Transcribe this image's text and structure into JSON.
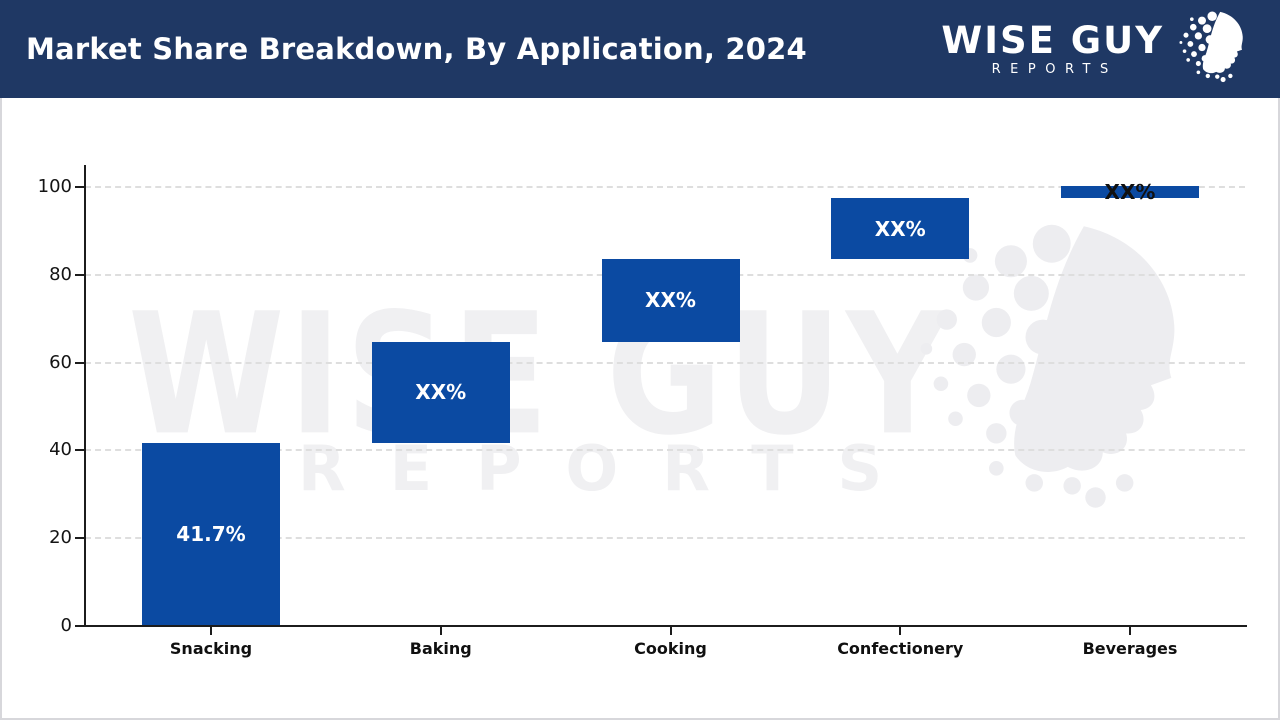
{
  "header": {
    "title": "Market Share Breakdown, By Application, 2024",
    "logo": {
      "line1": "WISE GUY",
      "line2": "REPORTS"
    }
  },
  "watermark": {
    "line1": "WISE GUY",
    "line2": "REPORTS"
  },
  "colors": {
    "header_bg": "#1f3864",
    "bar": "#0b4aa2",
    "grid": "#dedede",
    "axis": "#1c1c1c",
    "page_border": "#d7d7db",
    "bar_label_light": "#ffffff",
    "bar_label_dark": "#111111"
  },
  "chart_data": {
    "type": "bar",
    "subtype": "floating-waterfall",
    "title": "Market Share Breakdown, By Application, 2024",
    "categories": [
      "Snacking",
      "Baking",
      "Cooking",
      "Confectionery",
      "Beverages"
    ],
    "segments": [
      {
        "category": "Snacking",
        "start": 0,
        "end": 41.7,
        "label": "41.7%",
        "label_color": "#ffffff"
      },
      {
        "category": "Baking",
        "start": 41.7,
        "end": 64.8,
        "label": "XX%",
        "label_color": "#ffffff"
      },
      {
        "category": "Cooking",
        "start": 64.8,
        "end": 83.5,
        "label": "XX%",
        "label_color": "#ffffff"
      },
      {
        "category": "Confectionery",
        "start": 83.5,
        "end": 97.5,
        "label": "XX%",
        "label_color": "#ffffff"
      },
      {
        "category": "Beverages",
        "start": 97.5,
        "end": 100.2,
        "label": "XX%",
        "label_color": "#111111"
      }
    ],
    "yticks": [
      0,
      20,
      40,
      60,
      80,
      100
    ],
    "ylim": [
      0,
      105
    ],
    "xlabel": "",
    "ylabel": "",
    "grid": "dashed-horizontal",
    "legend": "none",
    "bar_color": "#0b4aa2"
  }
}
